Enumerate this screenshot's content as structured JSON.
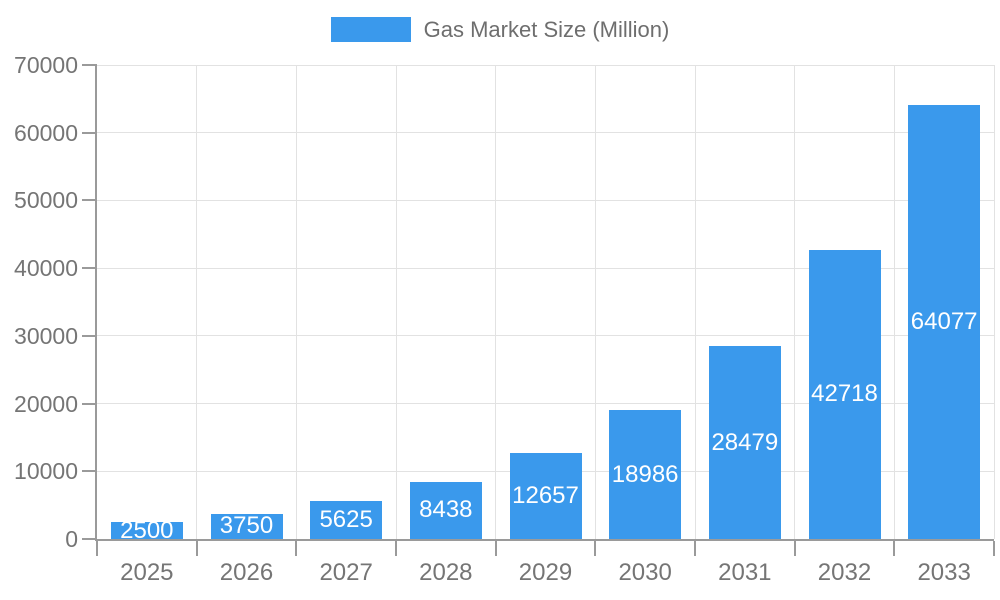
{
  "colors": {
    "bar_fill": "#3a99ec",
    "axis_line": "#9a9a9a",
    "grid_line": "#e2e2e2",
    "tick_mark": "#9a9a9a",
    "axis_label": "#757575",
    "legend_label": "#6e6e6e",
    "data_label": "#ffffff",
    "background": "#ffffff"
  },
  "legend": {
    "label": "Gas Market Size (Million)",
    "position": "top-center",
    "swatch_color": "#3a99ec"
  },
  "chart_data": {
    "type": "bar",
    "title": "Gas Market Size (Million)",
    "categories": [
      "2025",
      "2026",
      "2027",
      "2028",
      "2029",
      "2030",
      "2031",
      "2032",
      "2033"
    ],
    "series": [
      {
        "name": "Gas Market Size (Million)",
        "values": [
          2500,
          3750,
          5625,
          8438,
          12657,
          18986,
          28479,
          42718,
          64077
        ]
      }
    ],
    "xlabel": "",
    "ylabel": "",
    "ylim": [
      0,
      70000
    ],
    "yticks": [
      0,
      10000,
      20000,
      30000,
      40000,
      50000,
      60000,
      70000
    ],
    "grid": true,
    "legend_position": "top-center",
    "data_labels": {
      "position": "inside-center",
      "color": "#ffffff"
    }
  }
}
